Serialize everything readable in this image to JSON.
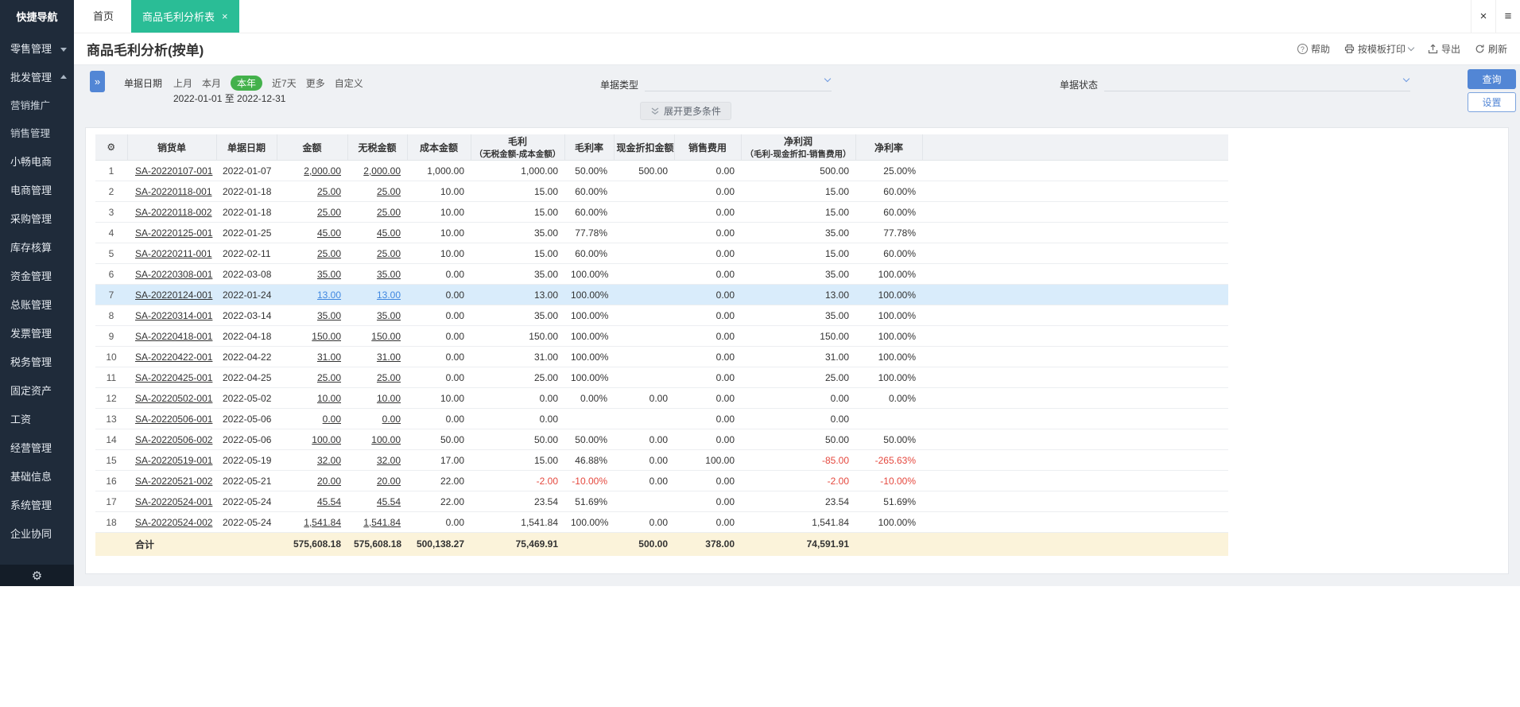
{
  "icons": {
    "collapse": "»",
    "close": "×",
    "menu": "≡",
    "gear": "⚙",
    "help": "?"
  },
  "colors": {
    "sidebar_bg": "#1f2b3a",
    "active_tab_teal": "#2abd96",
    "accent_blue": "#5286d5",
    "quick_pill_green": "#43b14b",
    "selected_row_blue": "#d9ecfb",
    "total_row_yellow": "#fbf3da",
    "negative_red": "#e5483e"
  },
  "sidebar": {
    "top_item": "快捷导航",
    "items": [
      {
        "label": "零售管理",
        "arrow": "down"
      },
      {
        "label": "批发管理",
        "arrow": "up",
        "children": [
          "营销推广",
          "销售管理"
        ]
      },
      {
        "label": "小畅电商"
      },
      {
        "label": "电商管理"
      },
      {
        "label": "采购管理"
      },
      {
        "label": "库存核算"
      },
      {
        "label": "资金管理"
      },
      {
        "label": "总账管理"
      },
      {
        "label": "发票管理"
      },
      {
        "label": "税务管理"
      },
      {
        "label": "固定资产"
      },
      {
        "label": "工资"
      },
      {
        "label": "经营管理"
      },
      {
        "label": "基础信息"
      },
      {
        "label": "系统管理"
      },
      {
        "label": "企业协同"
      }
    ]
  },
  "tabbar": {
    "home_tab": "首页",
    "active_tab": "商品毛利分析表"
  },
  "header": {
    "title": "商品毛利分析(按单)",
    "actions": {
      "help": "帮助",
      "print": "按模板打印",
      "export": "导出",
      "refresh": "刷新"
    }
  },
  "filters": {
    "date_label": "单据日期",
    "quick_options": [
      "上月",
      "本月",
      "本年",
      "近7天",
      "更多",
      "自定义"
    ],
    "active_quick_index": 2,
    "date_range": "2022-01-01 至 2022-12-31",
    "type_label": "单据类型",
    "status_label": "单据状态",
    "expand_more": "展开更多条件",
    "query_button": "查询",
    "settings_button": "设置"
  },
  "table": {
    "columns": [
      {
        "key": "order",
        "label": "销货单"
      },
      {
        "key": "date",
        "label": "单据日期"
      },
      {
        "key": "amount",
        "label": "金额"
      },
      {
        "key": "tax_free",
        "label": "无税金额"
      },
      {
        "key": "cost",
        "label": "成本金额"
      },
      {
        "key": "gross",
        "label": "毛利",
        "sublabel": "（无税金额-成本金额）"
      },
      {
        "key": "gross_rate",
        "label": "毛利率"
      },
      {
        "key": "cash_discount",
        "label": "现金折扣金额"
      },
      {
        "key": "sales_expense",
        "label": "销售费用"
      },
      {
        "key": "net",
        "label": "净利润",
        "sublabel": "（毛利-现金折扣-销售费用）"
      },
      {
        "key": "net_rate",
        "label": "净利率"
      }
    ],
    "rows": [
      {
        "n": 1,
        "order": "SA-20220107-001",
        "date": "2022-01-07",
        "amount": "2,000.00",
        "tax_free": "2,000.00",
        "cost": "1,000.00",
        "gross": "1,000.00",
        "gross_rate": "50.00%",
        "cash_discount": "500.00",
        "sales_expense": "0.00",
        "net": "500.00",
        "net_rate": "25.00%"
      },
      {
        "n": 2,
        "order": "SA-20220118-001",
        "date": "2022-01-18",
        "amount": "25.00",
        "tax_free": "25.00",
        "cost": "10.00",
        "gross": "15.00",
        "gross_rate": "60.00%",
        "cash_discount": "",
        "sales_expense": "0.00",
        "net": "15.00",
        "net_rate": "60.00%"
      },
      {
        "n": 3,
        "order": "SA-20220118-002",
        "date": "2022-01-18",
        "amount": "25.00",
        "tax_free": "25.00",
        "cost": "10.00",
        "gross": "15.00",
        "gross_rate": "60.00%",
        "cash_discount": "",
        "sales_expense": "0.00",
        "net": "15.00",
        "net_rate": "60.00%"
      },
      {
        "n": 4,
        "order": "SA-20220125-001",
        "date": "2022-01-25",
        "amount": "45.00",
        "tax_free": "45.00",
        "cost": "10.00",
        "gross": "35.00",
        "gross_rate": "77.78%",
        "cash_discount": "",
        "sales_expense": "0.00",
        "net": "35.00",
        "net_rate": "77.78%"
      },
      {
        "n": 5,
        "order": "SA-20220211-001",
        "date": "2022-02-11",
        "amount": "25.00",
        "tax_free": "25.00",
        "cost": "10.00",
        "gross": "15.00",
        "gross_rate": "60.00%",
        "cash_discount": "",
        "sales_expense": "0.00",
        "net": "15.00",
        "net_rate": "60.00%"
      },
      {
        "n": 6,
        "order": "SA-20220308-001",
        "date": "2022-03-08",
        "amount": "35.00",
        "tax_free": "35.00",
        "cost": "0.00",
        "gross": "35.00",
        "gross_rate": "100.00%",
        "cash_discount": "",
        "sales_expense": "0.00",
        "net": "35.00",
        "net_rate": "100.00%"
      },
      {
        "n": 7,
        "order": "SA-20220124-001",
        "date": "2022-01-24",
        "amount": "13.00",
        "tax_free": "13.00",
        "cost": "0.00",
        "gross": "13.00",
        "gross_rate": "100.00%",
        "cash_discount": "",
        "sales_expense": "0.00",
        "net": "13.00",
        "net_rate": "100.00%",
        "selected": true
      },
      {
        "n": 8,
        "order": "SA-20220314-001",
        "date": "2022-03-14",
        "amount": "35.00",
        "tax_free": "35.00",
        "cost": "0.00",
        "gross": "35.00",
        "gross_rate": "100.00%",
        "cash_discount": "",
        "sales_expense": "0.00",
        "net": "35.00",
        "net_rate": "100.00%"
      },
      {
        "n": 9,
        "order": "SA-20220418-001",
        "date": "2022-04-18",
        "amount": "150.00",
        "tax_free": "150.00",
        "cost": "0.00",
        "gross": "150.00",
        "gross_rate": "100.00%",
        "cash_discount": "",
        "sales_expense": "0.00",
        "net": "150.00",
        "net_rate": "100.00%"
      },
      {
        "n": 10,
        "order": "SA-20220422-001",
        "date": "2022-04-22",
        "amount": "31.00",
        "tax_free": "31.00",
        "cost": "0.00",
        "gross": "31.00",
        "gross_rate": "100.00%",
        "cash_discount": "",
        "sales_expense": "0.00",
        "net": "31.00",
        "net_rate": "100.00%"
      },
      {
        "n": 11,
        "order": "SA-20220425-001",
        "date": "2022-04-25",
        "amount": "25.00",
        "tax_free": "25.00",
        "cost": "0.00",
        "gross": "25.00",
        "gross_rate": "100.00%",
        "cash_discount": "",
        "sales_expense": "0.00",
        "net": "25.00",
        "net_rate": "100.00%"
      },
      {
        "n": 12,
        "order": "SA-20220502-001",
        "date": "2022-05-02",
        "amount": "10.00",
        "tax_free": "10.00",
        "cost": "10.00",
        "gross": "0.00",
        "gross_rate": "0.00%",
        "cash_discount": "0.00",
        "sales_expense": "0.00",
        "net": "0.00",
        "net_rate": "0.00%"
      },
      {
        "n": 13,
        "order": "SA-20220506-001",
        "date": "2022-05-06",
        "amount": "0.00",
        "tax_free": "0.00",
        "cost": "0.00",
        "gross": "0.00",
        "gross_rate": "",
        "cash_discount": "",
        "sales_expense": "0.00",
        "net": "0.00",
        "net_rate": ""
      },
      {
        "n": 14,
        "order": "SA-20220506-002",
        "date": "2022-05-06",
        "amount": "100.00",
        "tax_free": "100.00",
        "cost": "50.00",
        "gross": "50.00",
        "gross_rate": "50.00%",
        "cash_discount": "0.00",
        "sales_expense": "0.00",
        "net": "50.00",
        "net_rate": "50.00%"
      },
      {
        "n": 15,
        "order": "SA-20220519-001",
        "date": "2022-05-19",
        "amount": "32.00",
        "tax_free": "32.00",
        "cost": "17.00",
        "gross": "15.00",
        "gross_rate": "46.88%",
        "cash_discount": "0.00",
        "sales_expense": "100.00",
        "net": "-85.00",
        "net_rate": "-265.63%"
      },
      {
        "n": 16,
        "order": "SA-20220521-002",
        "date": "2022-05-21",
        "amount": "20.00",
        "tax_free": "20.00",
        "cost": "22.00",
        "gross": "-2.00",
        "gross_rate": "-10.00%",
        "cash_discount": "0.00",
        "sales_expense": "0.00",
        "net": "-2.00",
        "net_rate": "-10.00%"
      },
      {
        "n": 17,
        "order": "SA-20220524-001",
        "date": "2022-05-24",
        "amount": "45.54",
        "tax_free": "45.54",
        "cost": "22.00",
        "gross": "23.54",
        "gross_rate": "51.69%",
        "cash_discount": "",
        "sales_expense": "0.00",
        "net": "23.54",
        "net_rate": "51.69%"
      },
      {
        "n": 18,
        "order": "SA-20220524-002",
        "date": "2022-05-24",
        "amount": "1,541.84",
        "tax_free": "1,541.84",
        "cost": "0.00",
        "gross": "1,541.84",
        "gross_rate": "100.00%",
        "cash_discount": "0.00",
        "sales_expense": "0.00",
        "net": "1,541.84",
        "net_rate": "100.00%"
      }
    ],
    "total": {
      "label": "合计",
      "amount": "575,608.18",
      "tax_free": "575,608.18",
      "cost": "500,138.27",
      "gross": "75,469.91",
      "gross_rate": "",
      "cash_discount": "500.00",
      "sales_expense": "378.00",
      "net": "74,591.91",
      "net_rate": ""
    }
  }
}
